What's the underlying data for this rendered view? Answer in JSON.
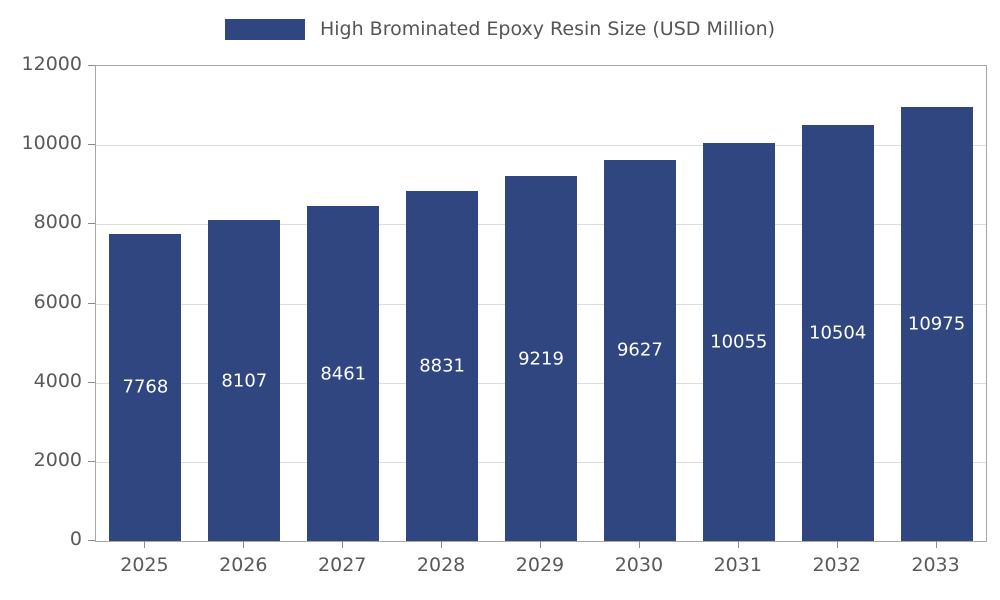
{
  "chart_data": {
    "type": "bar",
    "title": "High Brominated Epoxy Resin Size (USD Million)",
    "categories": [
      "2025",
      "2026",
      "2027",
      "2028",
      "2029",
      "2030",
      "2031",
      "2032",
      "2033"
    ],
    "values": [
      7768,
      8107,
      8461,
      8831,
      9219,
      9627,
      10055,
      10504,
      10975
    ],
    "xlabel": "",
    "ylabel": "",
    "ylim": [
      0,
      12000
    ],
    "yticks": [
      0,
      2000,
      4000,
      6000,
      8000,
      10000,
      12000
    ],
    "bar_color": "#2f4680",
    "grid": true,
    "legend_position": "top",
    "value_labels_inside_bars": true
  }
}
